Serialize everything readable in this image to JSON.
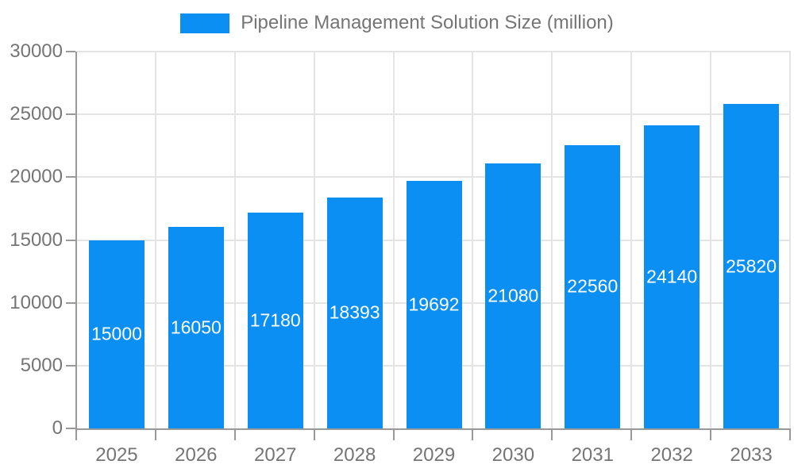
{
  "chart_data": {
    "type": "bar",
    "title": "Pipeline Management Solution Size (million)",
    "categories": [
      "2025",
      "2026",
      "2027",
      "2028",
      "2029",
      "2030",
      "2031",
      "2032",
      "2033"
    ],
    "values": [
      15000,
      16050,
      17180,
      18393,
      19692,
      21080,
      22560,
      24140,
      25820
    ],
    "xlabel": "",
    "ylabel": "",
    "ylim": [
      0,
      30000
    ],
    "ytick_step": 5000,
    "ytick_labels": [
      "0",
      "5000",
      "10000",
      "15000",
      "20000",
      "25000",
      "30000"
    ],
    "grid": "horizontal and vertical",
    "legend_position": "top-center",
    "bar_color": "#0C8FF2",
    "bar_label_color": "#FFFFFF",
    "axis_text_color": "#757575",
    "gridline_color": "#E4E4E4",
    "axis_line_color": "#999999",
    "background_color": "#FFFFFF"
  }
}
